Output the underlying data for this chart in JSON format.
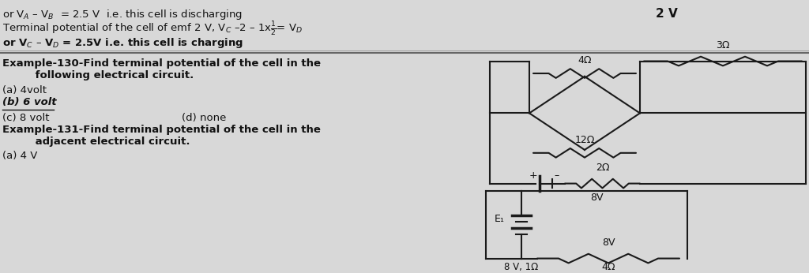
{
  "bg_color": "#d8d8d8",
  "line_color": "#1a1a1a",
  "text_color": "#111111",
  "two_v_label": "2 V",
  "top_text1": "or V",
  "top_text2": "Terminal potential of the cell of emf 2 V, V",
  "top_text3": "or V",
  "ex130_line1": "Example-130-Find terminal potential of the cell in the",
  "ex130_line2": "         following electrical circuit.",
  "ex130_a": "(a) 4volt",
  "ex130_b": "(b) 6 volt",
  "ex130_c": "(c) 8 volt",
  "ex130_d": "(d) none",
  "ex131_line1": "Example-131-Find terminal potential of the cell in the",
  "ex131_line2": "         adjacent electrical circuit.",
  "ex131_a": "(a) 4 V",
  "label_4ohm": "4Ω",
  "label_3ohm": "3Ω",
  "label_12ohm": "12Ω",
  "label_2ohm": "2Ω",
  "label_8v": "8V",
  "label_4ohm2": "4Ω",
  "label_8v1ohm": "8 V, 1Ω",
  "label_E1": "E₁"
}
